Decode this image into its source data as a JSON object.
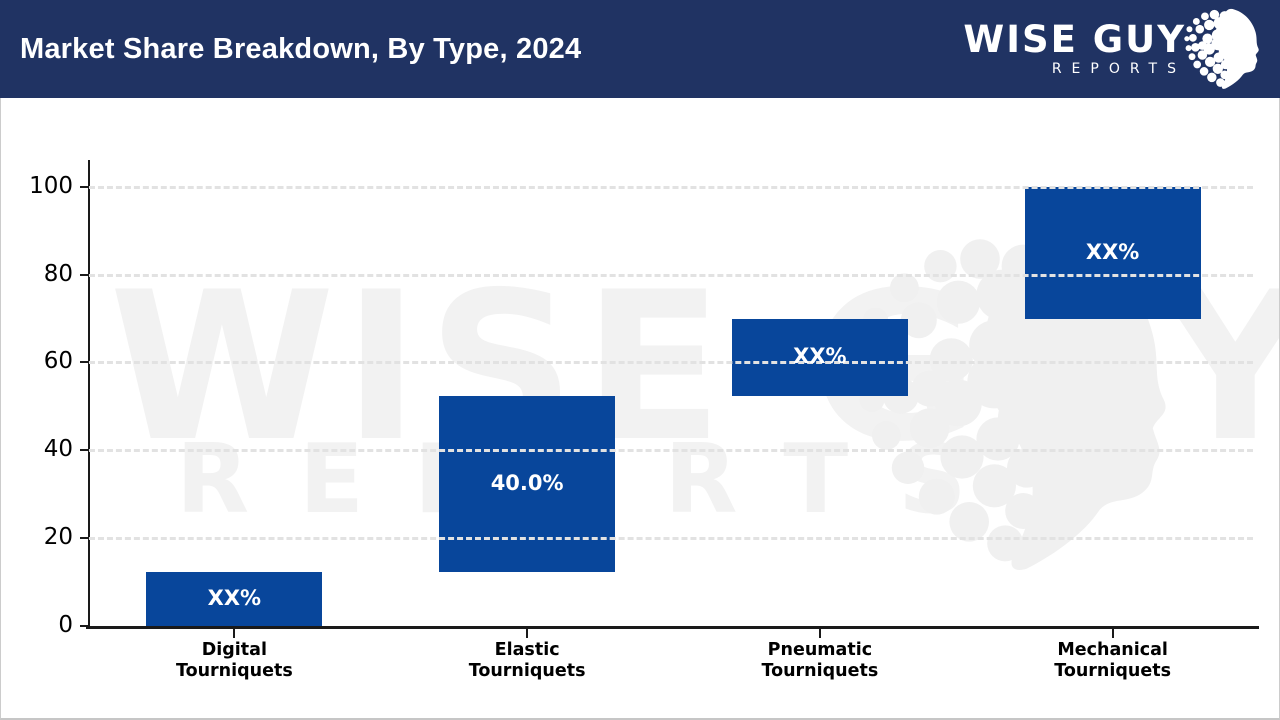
{
  "header": {
    "title": "Market Share Breakdown, By Type, 2024",
    "background_color": "#203363",
    "logo": {
      "line1": "WISE GUY",
      "line2": "REPORTS"
    }
  },
  "watermark": {
    "line1": "WISE GUY",
    "line2": "REPORTS"
  },
  "chart_data": {
    "type": "bar",
    "subtype": "waterfall",
    "title": "Market Share Breakdown, By Type, 2024",
    "categories": [
      "Digital\nTourniquets",
      "Elastic\nTourniquets",
      "Pneumatic\nTourniquets",
      "Mechanical\nTourniquets"
    ],
    "segments": [
      {
        "category": "Digital Tourniquets",
        "start": 0,
        "end": 12.4,
        "label": "XX%"
      },
      {
        "category": "Elastic Tourniquets",
        "start": 12.4,
        "end": 52.4,
        "label": "40.0%",
        "value": 40.0
      },
      {
        "category": "Pneumatic Tourniquets",
        "start": 52.4,
        "end": 69.9,
        "label": "XX%"
      },
      {
        "category": "Mechanical Tourniquets",
        "start": 69.9,
        "end": 100,
        "label": "XX%"
      }
    ],
    "ylim": [
      0,
      100
    ],
    "yticks": [
      0,
      20,
      40,
      60,
      80,
      100
    ],
    "grid": "dashed-horizontal",
    "legend": "none",
    "bar_color": "#08469b",
    "bar_label_color": "#ffffff",
    "axis_color": "#1a1a1a"
  }
}
